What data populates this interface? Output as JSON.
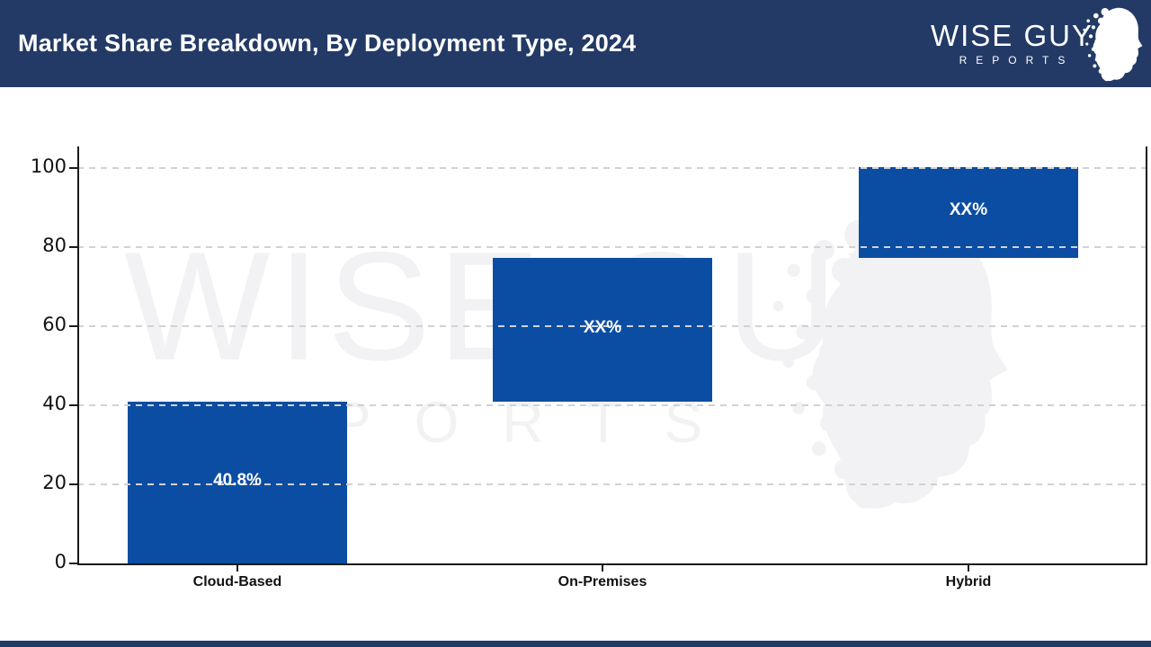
{
  "header": {
    "title": "Market Share Breakdown, By Deployment Type, 2024",
    "bg_color": "#233a66",
    "logo": {
      "line1": "WISE GUY",
      "line2": "REPORTS"
    }
  },
  "watermark": {
    "line1": "WISE GUY",
    "line2": "REPORTS"
  },
  "chart_data": {
    "type": "bar",
    "variant": "floating-waterfall",
    "title": "Market Share Breakdown, By Deployment Type, 2024",
    "categories": [
      "Cloud-Based",
      "On-Premises",
      "Hybrid"
    ],
    "segments": [
      {
        "category": "Cloud-Based",
        "start": 0,
        "end": 40.8,
        "label": "40.8%"
      },
      {
        "category": "On-Premises",
        "start": 40.8,
        "end": 77.3,
        "label": "XX%"
      },
      {
        "category": "Hybrid",
        "start": 77.3,
        "end": 100.3,
        "label": "XX%"
      }
    ],
    "y_ticks": [
      0,
      20,
      40,
      60,
      80,
      100
    ],
    "ylim": [
      0,
      105
    ],
    "xlabel": "",
    "ylabel": "",
    "grid": "dashed-horizontal",
    "legend": "none",
    "bar_color": "#0b4da2",
    "grid_color": "#d2d2d2",
    "axis_color": "#1a1a1a",
    "value_label_color": "#ffffff"
  }
}
